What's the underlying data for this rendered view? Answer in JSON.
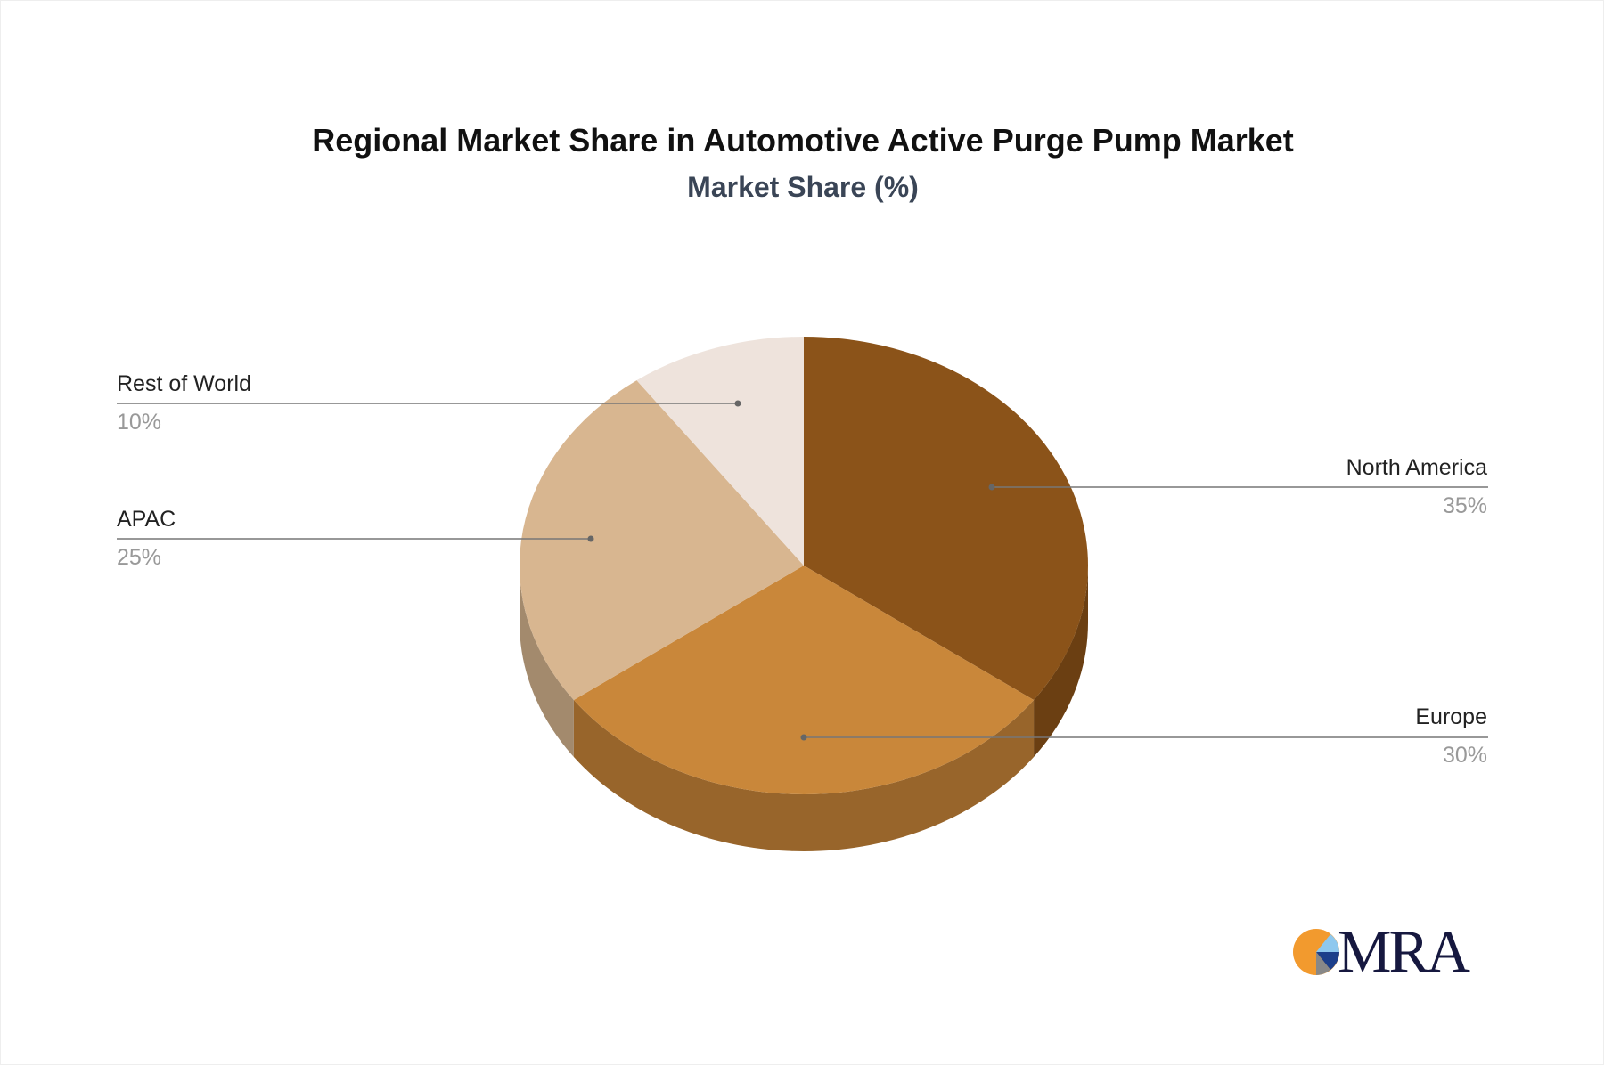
{
  "chart_data": {
    "type": "pie",
    "title": "Regional Market Share in Automotive Active Purge Pump Market",
    "subtitle": "Market Share (%)",
    "categories": [
      "North America",
      "Europe",
      "APAC",
      "Rest of World"
    ],
    "values": [
      35,
      30,
      25,
      10
    ],
    "labels": [
      "35%",
      "30%",
      "25%",
      "10%"
    ],
    "colors": [
      "#8B5319",
      "#C9873A",
      "#D8B690",
      "#EEE3DC"
    ],
    "side_colors": [
      "#6B3F12",
      "#98652B",
      "#A38A6D",
      "#BDB2AB"
    ],
    "style": "3d"
  },
  "logo": {
    "text": "MRA"
  }
}
